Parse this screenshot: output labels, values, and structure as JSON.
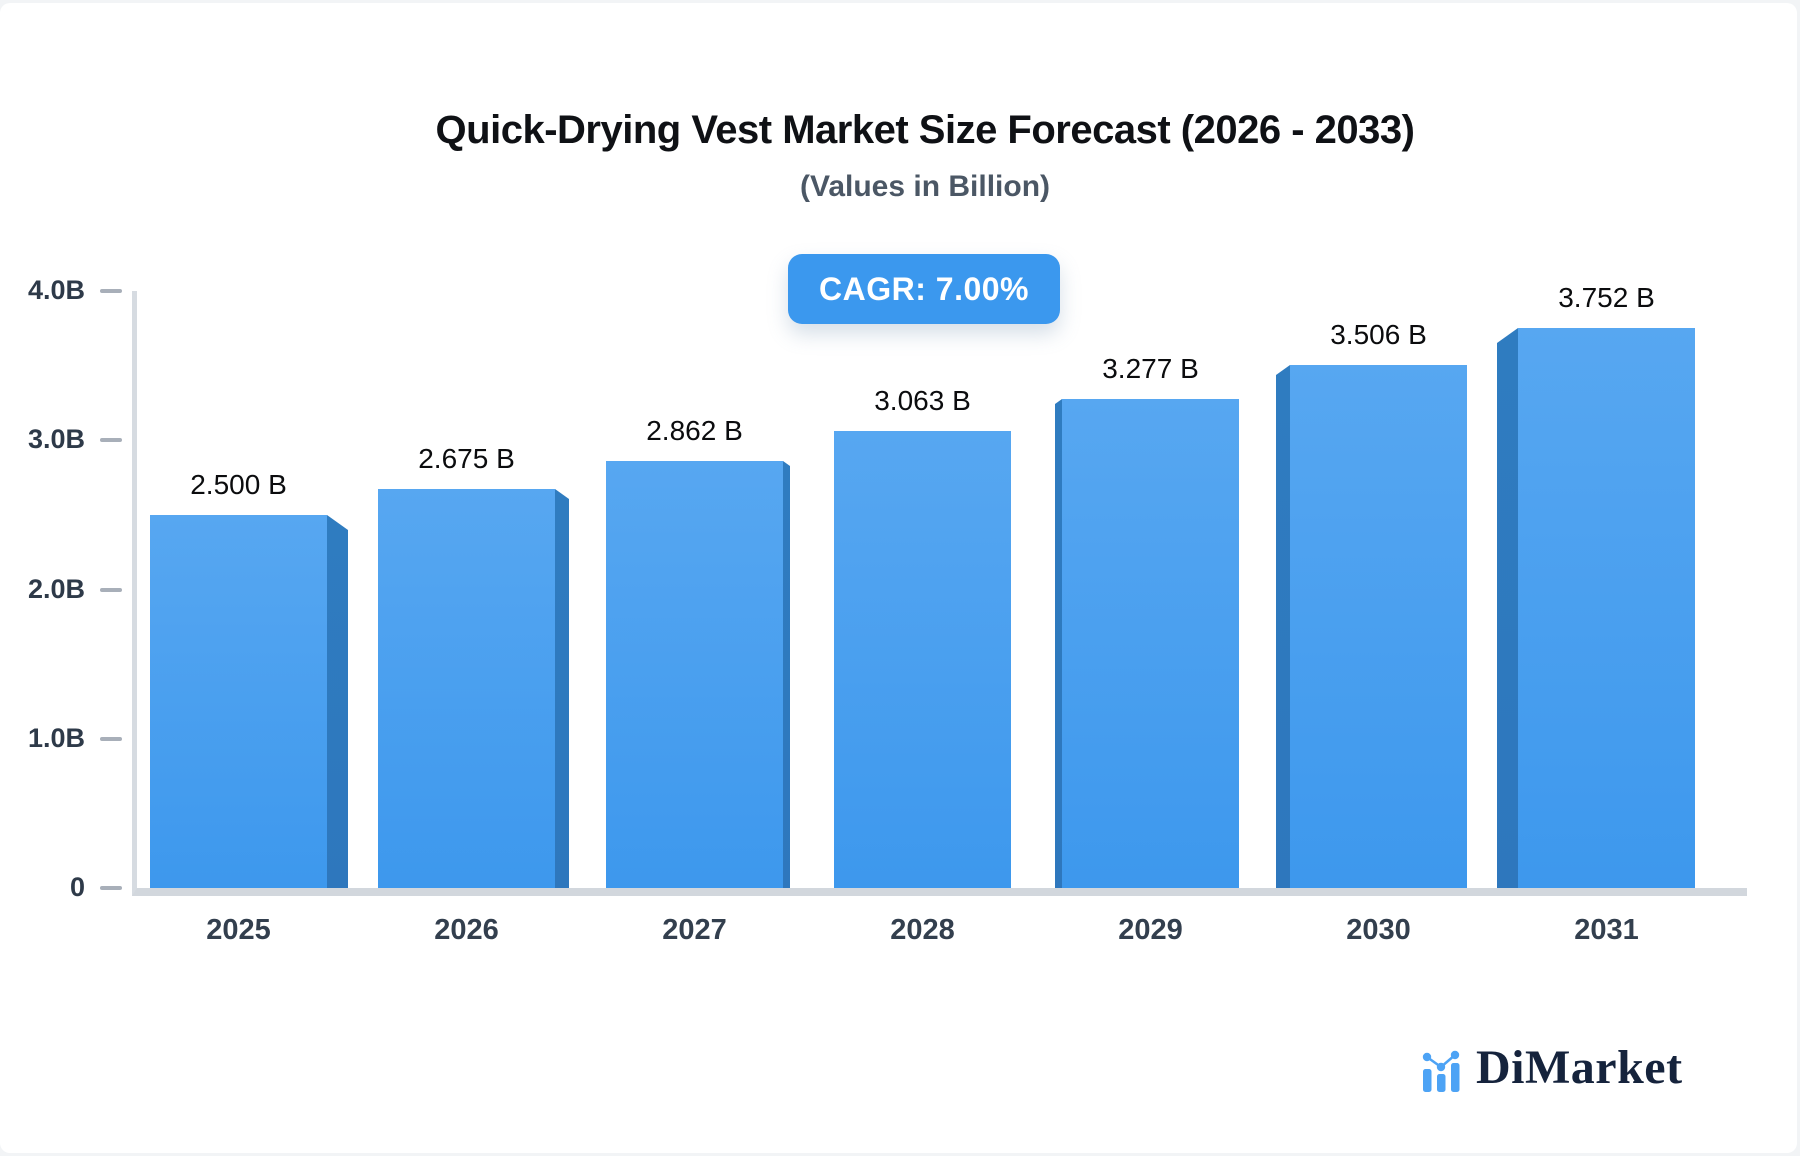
{
  "page": {
    "background": "#f2f4f6",
    "card_background": "#ffffff"
  },
  "title": "Quick-Drying Vest Market Size Forecast (2026 - 2033)",
  "subtitle": "(Values in Billion)",
  "badge": {
    "label": "CAGR: 7.00%",
    "color": "#3b98ee",
    "text_color": "#ffffff"
  },
  "brand": {
    "name": "DiMarket",
    "icon": "bar-chart-trend-icon",
    "text_color": "#15233c",
    "icon_color": "#4da3f5"
  },
  "colors": {
    "bar_face_top": "#57a7f1",
    "bar_face_bottom": "#3d98ed",
    "bar_side": "#2e77bd",
    "axis_line": "#d6dbe1",
    "baseline": "#d2d7dd",
    "tick_text": "#2e3a49",
    "year_text": "#333f4e",
    "value_text": "#0b0c0e",
    "subtitle_text": "#4b5765",
    "title_text": "#0f1115"
  },
  "chart_data": {
    "type": "bar",
    "title": "Quick-Drying Vest Market Size Forecast (2026 - 2033)",
    "subtitle": "(Values in Billion)",
    "categories": [
      "2025",
      "2026",
      "2027",
      "2028",
      "2029",
      "2030",
      "2031"
    ],
    "values": [
      2.5,
      2.675,
      2.862,
      3.063,
      3.277,
      3.506,
      3.752
    ],
    "bar_labels": [
      "2.500 B",
      "2.675 B",
      "2.862 B",
      "3.063 B",
      "3.277 B",
      "3.506 B",
      "3.752 B"
    ],
    "cagr": "7.00%",
    "unit": "Billion",
    "xlabel": "",
    "ylabel": "",
    "ylim": [
      0,
      4.0
    ],
    "ytick_labels": [
      "4.0B",
      "3.0B",
      "2.0B",
      "1.0B",
      "0"
    ],
    "grid": false,
    "legend": false,
    "bar_style": "pseudo-3d",
    "watermark": "DiMarket"
  }
}
